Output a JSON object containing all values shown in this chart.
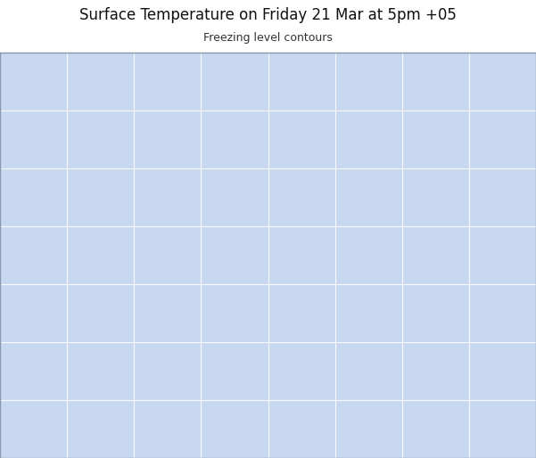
{
  "title": "Surface Temperature on Friday 21 Mar at 5pm +05",
  "subtitle": "Freezing level contours",
  "title_fontsize": 12,
  "subtitle_fontsize": 9,
  "background_color": "#ffffff",
  "map_ocean": "#c8d8f0",
  "land_base": "#d04010",
  "fig_width": 6.01,
  "fig_height": 5.14,
  "dpi": 100,
  "lon_min": 60.0,
  "lon_max": 100.0,
  "lat_min": -10.0,
  "lat_max": 25.0,
  "grid_lons": [
    65,
    70,
    75,
    80,
    85,
    90,
    95
  ],
  "grid_lats": [
    -5,
    0,
    5,
    10,
    15,
    20
  ],
  "contour_color": "#cc0000",
  "label_bg": "#c8d8f0",
  "border_color": "#8899aa"
}
